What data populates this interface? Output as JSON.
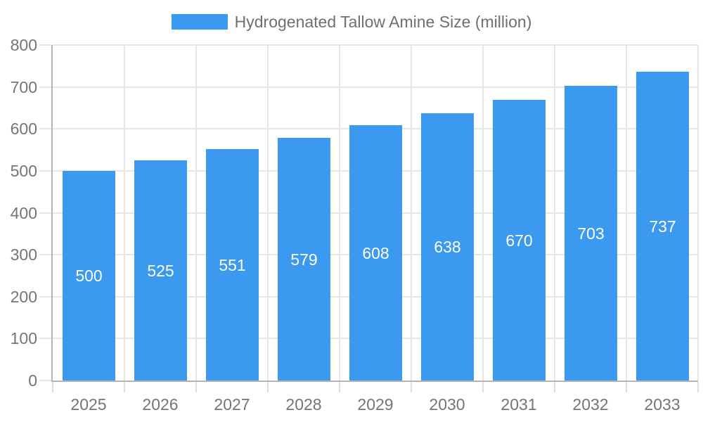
{
  "legend": {
    "swatch_color": "#3b99f0"
  },
  "chart_data": {
    "type": "bar",
    "title": "Hydrogenated Tallow Amine Size (million)",
    "categories": [
      "2025",
      "2026",
      "2027",
      "2028",
      "2029",
      "2030",
      "2031",
      "2032",
      "2033"
    ],
    "values": [
      500,
      525,
      551,
      579,
      608,
      638,
      670,
      703,
      737
    ],
    "xlabel": "",
    "ylabel": "",
    "ylim": [
      0,
      800
    ],
    "ytick_step": 100,
    "yticks": [
      0,
      100,
      200,
      300,
      400,
      500,
      600,
      700,
      800
    ],
    "grid": true,
    "legend_position": "top",
    "bar_color": "#3b99f0",
    "value_label_color": "#ffffff",
    "axis_color": "#b3b3b3",
    "gridline_color": "#e6e6e6",
    "text_color": "#757575"
  }
}
